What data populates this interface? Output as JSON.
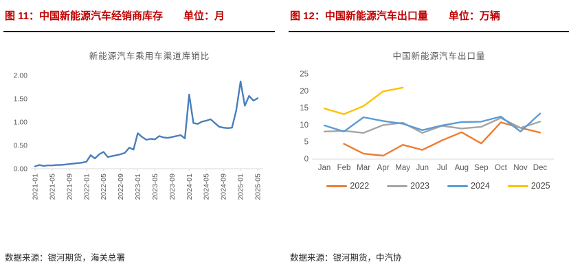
{
  "colors": {
    "header_red": "#c00000",
    "title_gray": "#595959",
    "axis_line": "#d9d9d9",
    "rule_black": "#000000",
    "inventory_line_blue": "#4a7ebb",
    "export_orange": "#ed7d31",
    "export_gray": "#a5a5a5",
    "export_blue": "#5b9bd5",
    "export_yellow": "#ffc000"
  },
  "panels": [
    {
      "header": {
        "title": "图 11：中国新能源汽车经销商库存",
        "unit": "单位：月"
      },
      "source": "数据来源：银河期货，海关总署"
    },
    {
      "header": {
        "title": "图 12：中国新能源汽车出口量",
        "unit": "单位：万辆"
      },
      "source": "数据来源：银河期货，中汽协"
    }
  ],
  "chart_data": [
    {
      "type": "line",
      "title": "新能源汽车乘用车渠道库销比",
      "x": [
        "2021-01",
        "2021-02",
        "2021-03",
        "2021-04",
        "2021-05",
        "2021-06",
        "2021-07",
        "2021-08",
        "2021-09",
        "2021-10",
        "2021-11",
        "2021-12",
        "2022-01",
        "2022-02",
        "2022-03",
        "2022-04",
        "2022-05",
        "2022-06",
        "2022-07",
        "2022-08",
        "2022-09",
        "2022-10",
        "2022-11",
        "2022-12",
        "2023-01",
        "2023-02",
        "2023-03",
        "2023-04",
        "2023-05",
        "2023-06",
        "2023-07",
        "2023-08",
        "2023-09",
        "2023-10",
        "2023-11",
        "2023-12",
        "2024-01",
        "2024-02",
        "2024-03",
        "2024-04",
        "2024-05",
        "2024-06",
        "2024-07",
        "2024-08",
        "2024-09",
        "2024-10",
        "2024-11",
        "2024-12",
        "2025-01",
        "2025-02",
        "2025-03",
        "2025-04",
        "2025-05"
      ],
      "x_tick_labels": [
        "2021-01",
        "2021-05",
        "2021-09",
        "2022-01",
        "2022-05",
        "2022-09",
        "2023-01",
        "2023-05",
        "2023-09",
        "2024-01",
        "2024-05",
        "2024-09",
        "2025-01",
        "2025-05"
      ],
      "series": [
        {
          "name": "新能源汽车乘用车渠道库销比",
          "color": "#4a7ebb",
          "values": [
            0.05,
            0.08,
            0.06,
            0.07,
            0.07,
            0.08,
            0.08,
            0.09,
            0.1,
            0.11,
            0.12,
            0.13,
            0.15,
            0.29,
            0.22,
            0.31,
            0.36,
            0.25,
            0.27,
            0.29,
            0.31,
            0.34,
            0.45,
            0.41,
            0.76,
            0.68,
            0.62,
            0.64,
            0.63,
            0.7,
            0.67,
            0.66,
            0.68,
            0.7,
            0.72,
            0.65,
            1.59,
            0.98,
            0.96,
            1.01,
            1.03,
            1.06,
            0.98,
            0.9,
            0.88,
            0.87,
            0.88,
            1.25,
            1.87,
            1.35,
            1.56,
            1.46,
            1.51
          ]
        }
      ],
      "ylim": [
        0,
        2.0
      ],
      "ytick_step": 0.5,
      "y_decimals": 2,
      "yticks": [
        "0.00",
        "0.50",
        "1.00",
        "1.50",
        "2.00"
      ],
      "grid": false,
      "legend": false
    },
    {
      "type": "line",
      "title": "中国新能源汽车出口量",
      "categories": [
        "Jan",
        "Feb",
        "Mar",
        "Apr",
        "May",
        "Jun",
        "Jul",
        "Aug",
        "Sep",
        "Oct",
        "Nov",
        "Dec"
      ],
      "series": [
        {
          "name": "2022",
          "color": "#ed7d31",
          "values": [
            null,
            4.5,
            1.6,
            1.0,
            4.2,
            2.7,
            5.5,
            7.9,
            4.6,
            10.8,
            9.2,
            7.8
          ]
        },
        {
          "name": "2023",
          "color": "#a5a5a5",
          "values": [
            8.1,
            8.3,
            7.7,
            10.0,
            10.7,
            7.7,
            9.8,
            9.0,
            9.5,
            12.1,
            9.2,
            11.0
          ]
        },
        {
          "name": "2024",
          "color": "#5b9bd5",
          "values": [
            9.9,
            8.1,
            12.3,
            11.2,
            10.4,
            8.5,
            9.9,
            10.9,
            11.0,
            12.5,
            8.1,
            13.4
          ]
        },
        {
          "name": "2025",
          "color": "#ffc000",
          "values": [
            14.9,
            13.2,
            15.6,
            19.9,
            21.0,
            null,
            null,
            null,
            null,
            null,
            null,
            null
          ]
        }
      ],
      "ylim": [
        0,
        25
      ],
      "ytick_step": 5,
      "y_decimals": 0,
      "yticks": [
        "0",
        "5",
        "10",
        "15",
        "20",
        "25"
      ],
      "grid": false,
      "legend": true,
      "legend_position": "bottom"
    }
  ]
}
